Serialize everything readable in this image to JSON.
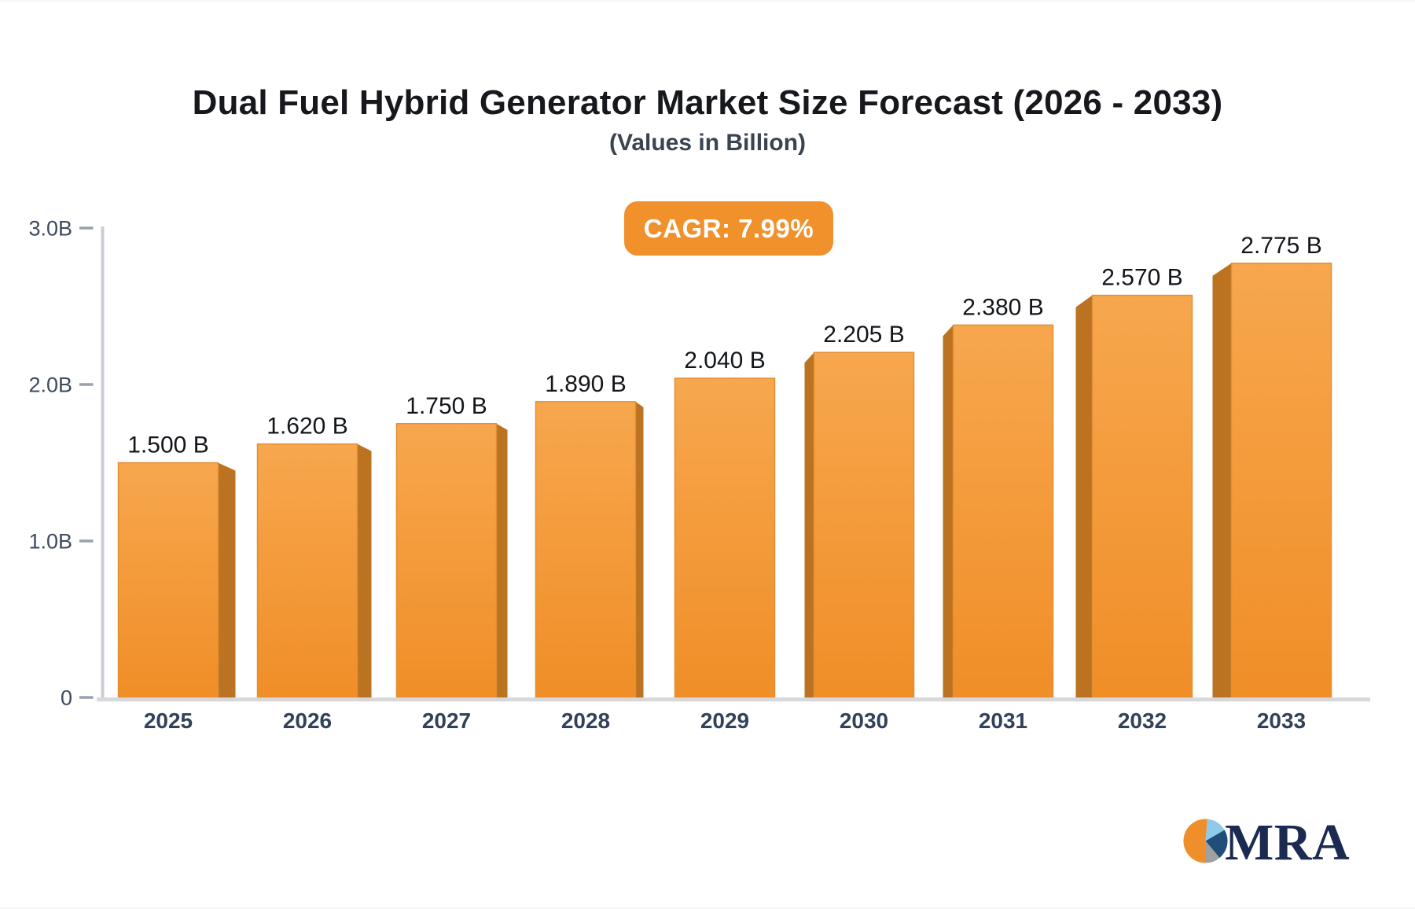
{
  "header": {
    "title": "Dual Fuel Hybrid Generator Market Size Forecast (2026 - 2033)",
    "subtitle": "(Values in Billion)",
    "cagr_badge": "CAGR: 7.99%"
  },
  "chart_data": {
    "type": "bar",
    "title": "Dual Fuel Hybrid Generator Market Size Forecast (2026 - 2033)",
    "subtitle": "(Values in Billion)",
    "annotation": "CAGR: 7.99%",
    "unit": "Billion",
    "categories": [
      "2025",
      "2026",
      "2027",
      "2028",
      "2029",
      "2030",
      "2031",
      "2032",
      "2033"
    ],
    "values": [
      1.5,
      1.62,
      1.75,
      1.89,
      2.04,
      2.205,
      2.38,
      2.57,
      2.775
    ],
    "value_labels": [
      "1.500 B",
      "1.620 B",
      "1.750 B",
      "1.890 B",
      "2.040 B",
      "2.205 B",
      "2.380 B",
      "2.570 B",
      "2.775 B"
    ],
    "ylim": [
      0,
      3
    ],
    "yticks": [
      {
        "v": 3,
        "label": "3.0B"
      },
      {
        "v": 2,
        "label": "2.0B"
      },
      {
        "v": 1,
        "label": "1.0B"
      },
      {
        "v": 0,
        "label": "0"
      }
    ],
    "grid": false,
    "legend": null,
    "style": {
      "bar_top": "#F7A74E",
      "bar_bottom": "#F08E27",
      "bar_side": "#BB7321",
      "bar_stroke": "#E28F33",
      "axis": "#C9CDD4",
      "baseline": "#D8D8DC",
      "tick": "#99A1AD",
      "tick_label": "#3E4A5F",
      "year_label": "#32415A",
      "value_label": "#12151A"
    }
  },
  "logo": {
    "text": "MRA",
    "text_color": "#1B2A50",
    "pie_segments": [
      {
        "name": "orange",
        "start": 85,
        "end": 270,
        "color": "#EF8E2B"
      },
      {
        "name": "light-blue",
        "start": 30,
        "end": 85,
        "color": "#8FCAE8"
      },
      {
        "name": "navy",
        "start": 310,
        "end": 390,
        "color": "#1F4E79"
      },
      {
        "name": "gray",
        "start": 270,
        "end": 310,
        "color": "#A0A0A0"
      }
    ]
  }
}
